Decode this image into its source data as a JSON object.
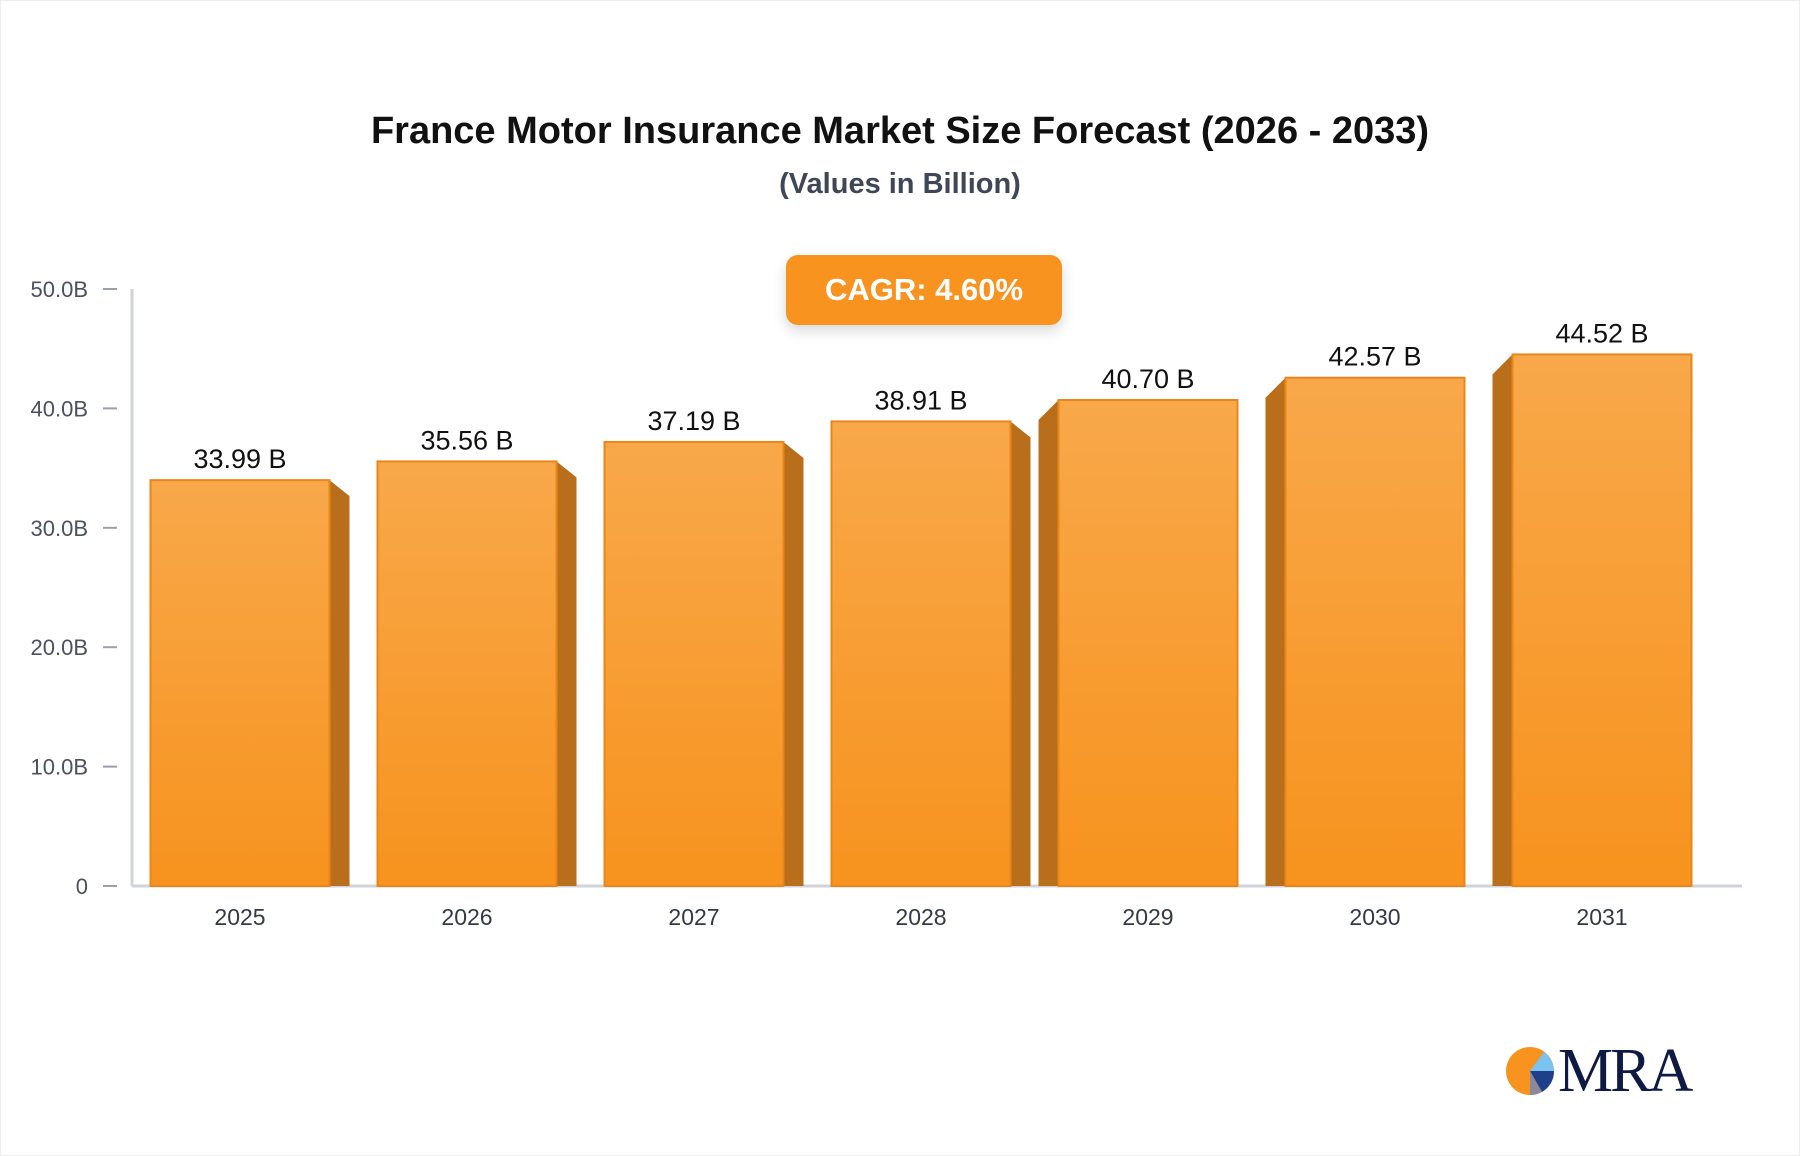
{
  "chart_data": {
    "type": "bar",
    "title": "France Motor Insurance Market Size Forecast (2026 - 2033)",
    "subtitle": "(Values in Billion)",
    "annotation": "CAGR: 4.60%",
    "categories": [
      "2025",
      "2026",
      "2027",
      "2028",
      "2029",
      "2030",
      "2031"
    ],
    "values": [
      33.99,
      35.56,
      37.19,
      38.91,
      40.7,
      42.57,
      44.52
    ],
    "data_labels": [
      "33.99 B",
      "35.56 B",
      "37.19 B",
      "38.91 B",
      "40.70 B",
      "42.57 B",
      "44.52 B"
    ],
    "yticks": [
      0,
      10,
      20,
      30,
      40,
      50
    ],
    "ytick_labels": [
      "0",
      "10.0B",
      "20.0B",
      "30.0B",
      "40.0B",
      "50.0B"
    ],
    "ylim": [
      0,
      50
    ],
    "xlabel": "",
    "ylabel": "",
    "grid": false,
    "colors": {
      "bar_top": "#f8a84a",
      "bar_bottom": "#f7931e",
      "bar_side": "#b86e1a",
      "axis": "#d0d3da",
      "tick_text": "#4a5060"
    }
  },
  "logo": {
    "text": "MRA"
  }
}
